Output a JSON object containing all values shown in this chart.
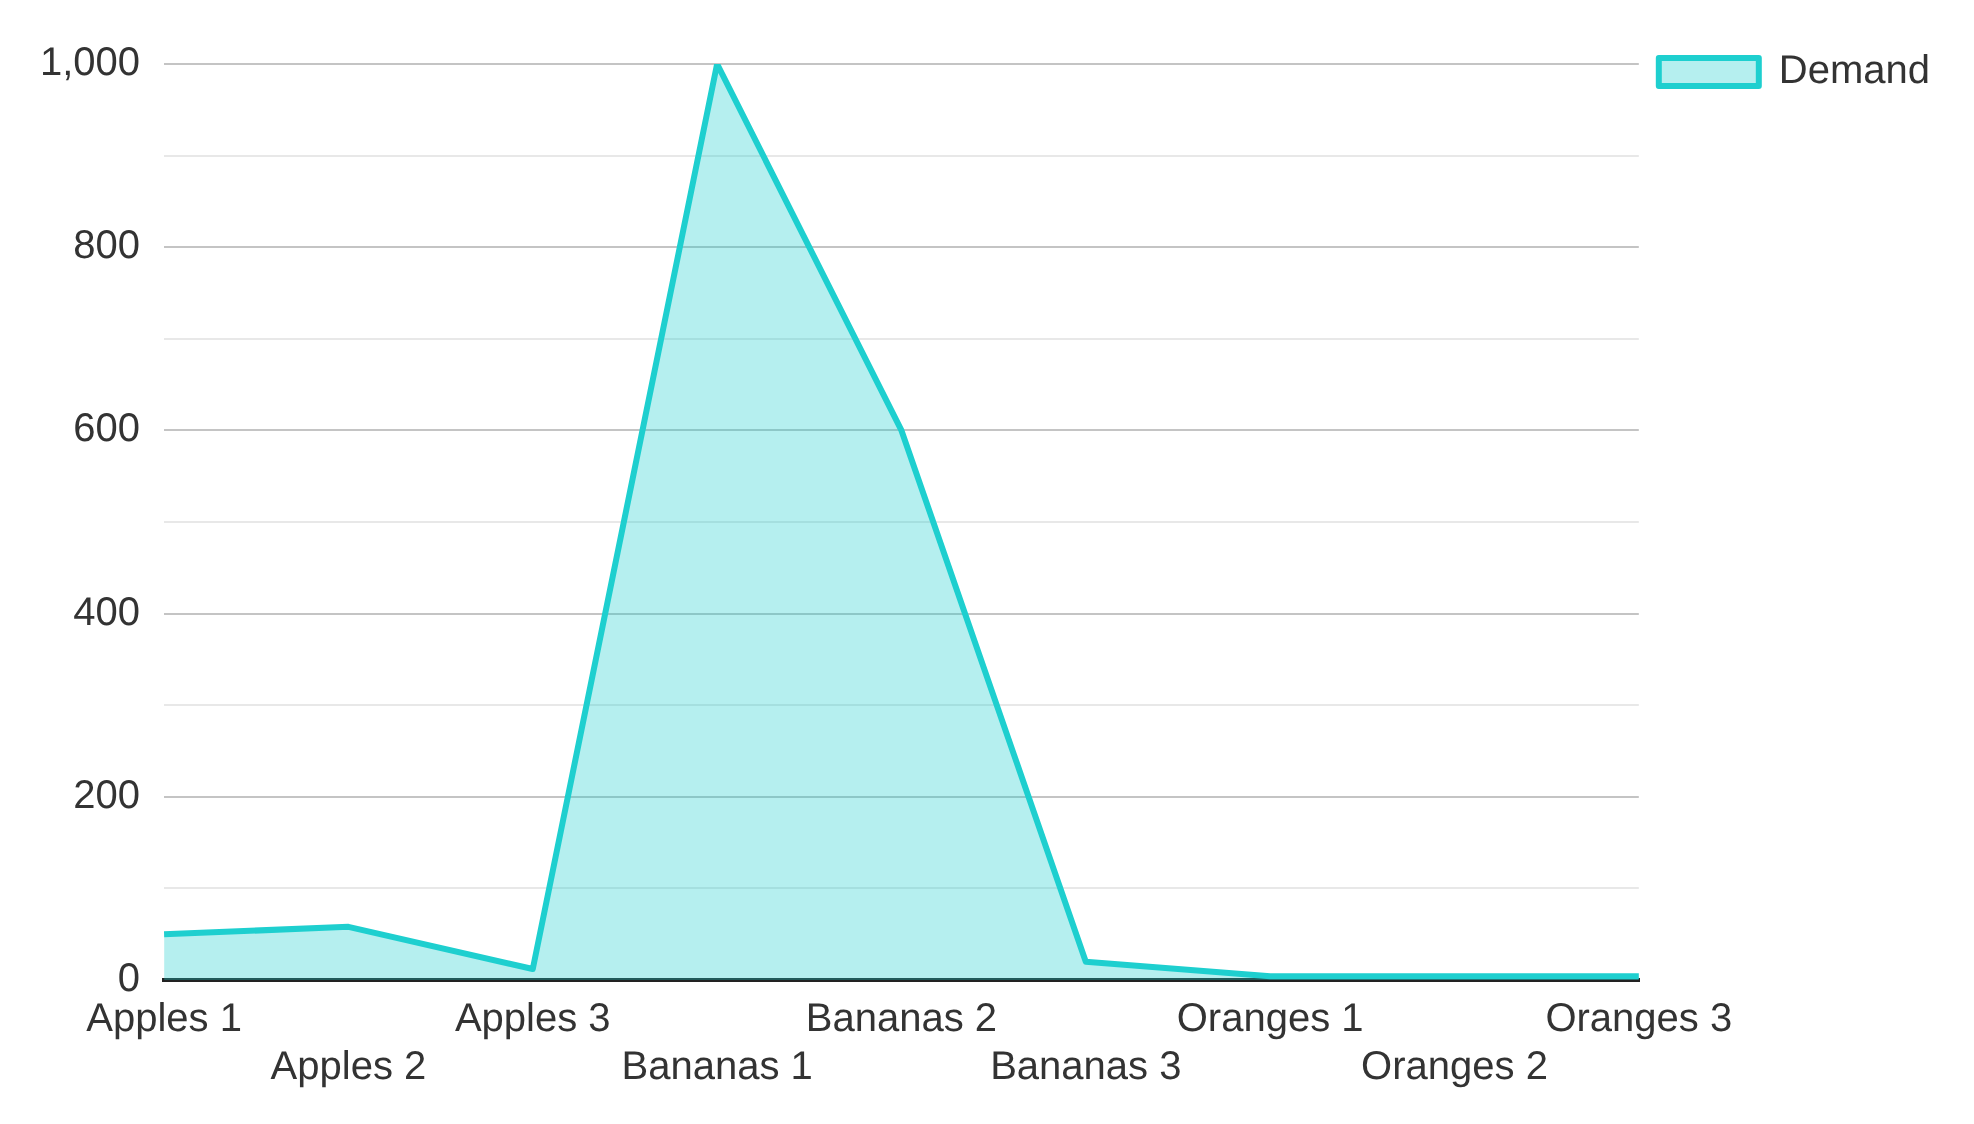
{
  "chart_data": {
    "type": "area",
    "categories": [
      "Apples 1",
      "Apples 2",
      "Apples 3",
      "Bananas 1",
      "Bananas 2",
      "Bananas 3",
      "Oranges 1",
      "Oranges 2",
      "Oranges 3"
    ],
    "series": [
      {
        "name": "Demand",
        "color": "#1ecfcf",
        "values": [
          50,
          58,
          12,
          1000,
          600,
          20,
          4,
          4,
          4
        ]
      }
    ],
    "ylim": [
      0,
      1000
    ],
    "yticks": [
      0,
      {
        "value": 100,
        "label": null
      },
      200,
      {
        "value": 300,
        "label": null
      },
      400,
      {
        "value": 500,
        "label": null
      },
      600,
      {
        "value": 700,
        "label": null
      },
      800,
      {
        "value": 900,
        "label": null
      },
      {
        "value": 1000,
        "label": "1,000"
      }
    ],
    "grid": "y",
    "legend": "top right"
  }
}
